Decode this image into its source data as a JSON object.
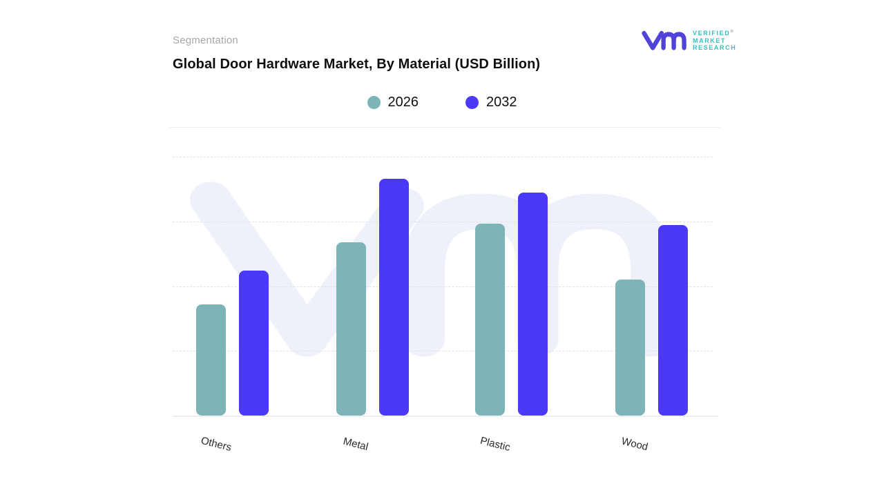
{
  "header": {
    "eyebrow": "Segmentation",
    "title": "Global Door Hardware Market, By Material (USD Billion)"
  },
  "logo": {
    "line1": "VERIFIED",
    "line2": "MARKET",
    "line3": "RESEARCH",
    "registered_mark": "®",
    "mark_color": "#4f43d8",
    "text_color": "#2fc2bc"
  },
  "legend": {
    "items": [
      {
        "label": "2026",
        "color": "#7cb4b8"
      },
      {
        "label": "2032",
        "color": "#4b39f7"
      }
    ]
  },
  "chart_data": {
    "type": "bar",
    "title": "Global Door Hardware Market, By Material (USD Billion)",
    "categories": [
      "Others",
      "Metal",
      "Plastic",
      "Wood"
    ],
    "series": [
      {
        "name": "2026",
        "color": "#7cb4b8",
        "values": [
          43,
          67,
          74,
          52.5
        ]
      },
      {
        "name": "2032",
        "color": "#4b39f7",
        "values": [
          56,
          91.5,
          86,
          73.5
        ]
      }
    ],
    "value_axis": {
      "min": 0,
      "max": 100,
      "tick_labels_visible": false
    },
    "note": "values estimated as percent of axis height; no numeric labels shown in chart",
    "grid": "horizontal-dashed",
    "legend_position": "top-center",
    "x_tick_rotation_deg": 14,
    "watermark": "vm monogram",
    "colors": {
      "watermark": "#eef0fa",
      "gridline": "#e2e2e7",
      "axis_line": "#ededf0"
    }
  }
}
